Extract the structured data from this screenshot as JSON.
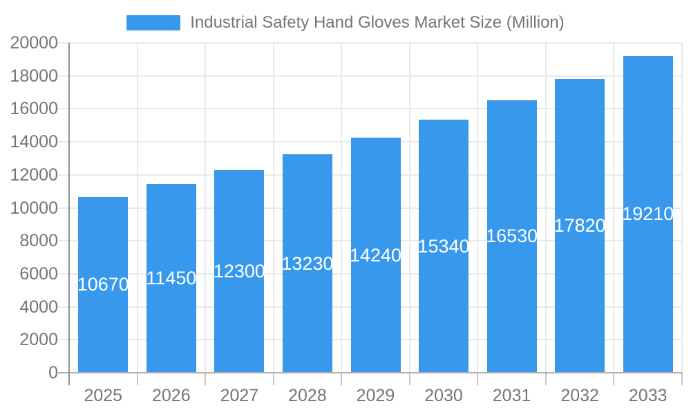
{
  "legend": {
    "label": "Industrial Safety Hand Gloves Market Size (Million)",
    "swatch_color": "#3899EC"
  },
  "colors": {
    "bar": "#3899EC",
    "grid": "#e9e9e9",
    "x_axis": "#b3b3b3",
    "y_axis": "#8f8f8f",
    "axis_text": "#757575",
    "data_label_text": "#ffffff"
  },
  "chart_data": {
    "type": "bar",
    "title": "Industrial Safety Hand Gloves Market Size (Million)",
    "series": [
      {
        "name": "Industrial Safety Hand Gloves Market Size (Million)",
        "values": [
          10670,
          11450,
          12300,
          13230,
          14240,
          15340,
          16530,
          17820,
          19210
        ]
      }
    ],
    "categories": [
      "2025",
      "2026",
      "2027",
      "2028",
      "2029",
      "2030",
      "2031",
      "2032",
      "2033"
    ],
    "data_labels": [
      "10670",
      "11450",
      "12300",
      "13230",
      "14240",
      "15340",
      "16530",
      "17820",
      "19210"
    ],
    "xlabel": "",
    "ylabel": "",
    "ylim": [
      0,
      20000
    ],
    "yticks": [
      0,
      2000,
      4000,
      6000,
      8000,
      10000,
      12000,
      14000,
      16000,
      18000,
      20000
    ],
    "ytick_labels": [
      "0",
      "2000",
      "4000",
      "6000",
      "8000",
      "10000",
      "12000",
      "14000",
      "16000",
      "18000",
      "20000"
    ],
    "grid": true,
    "legend_position": "top-center",
    "data_label_position": "inside-center"
  }
}
